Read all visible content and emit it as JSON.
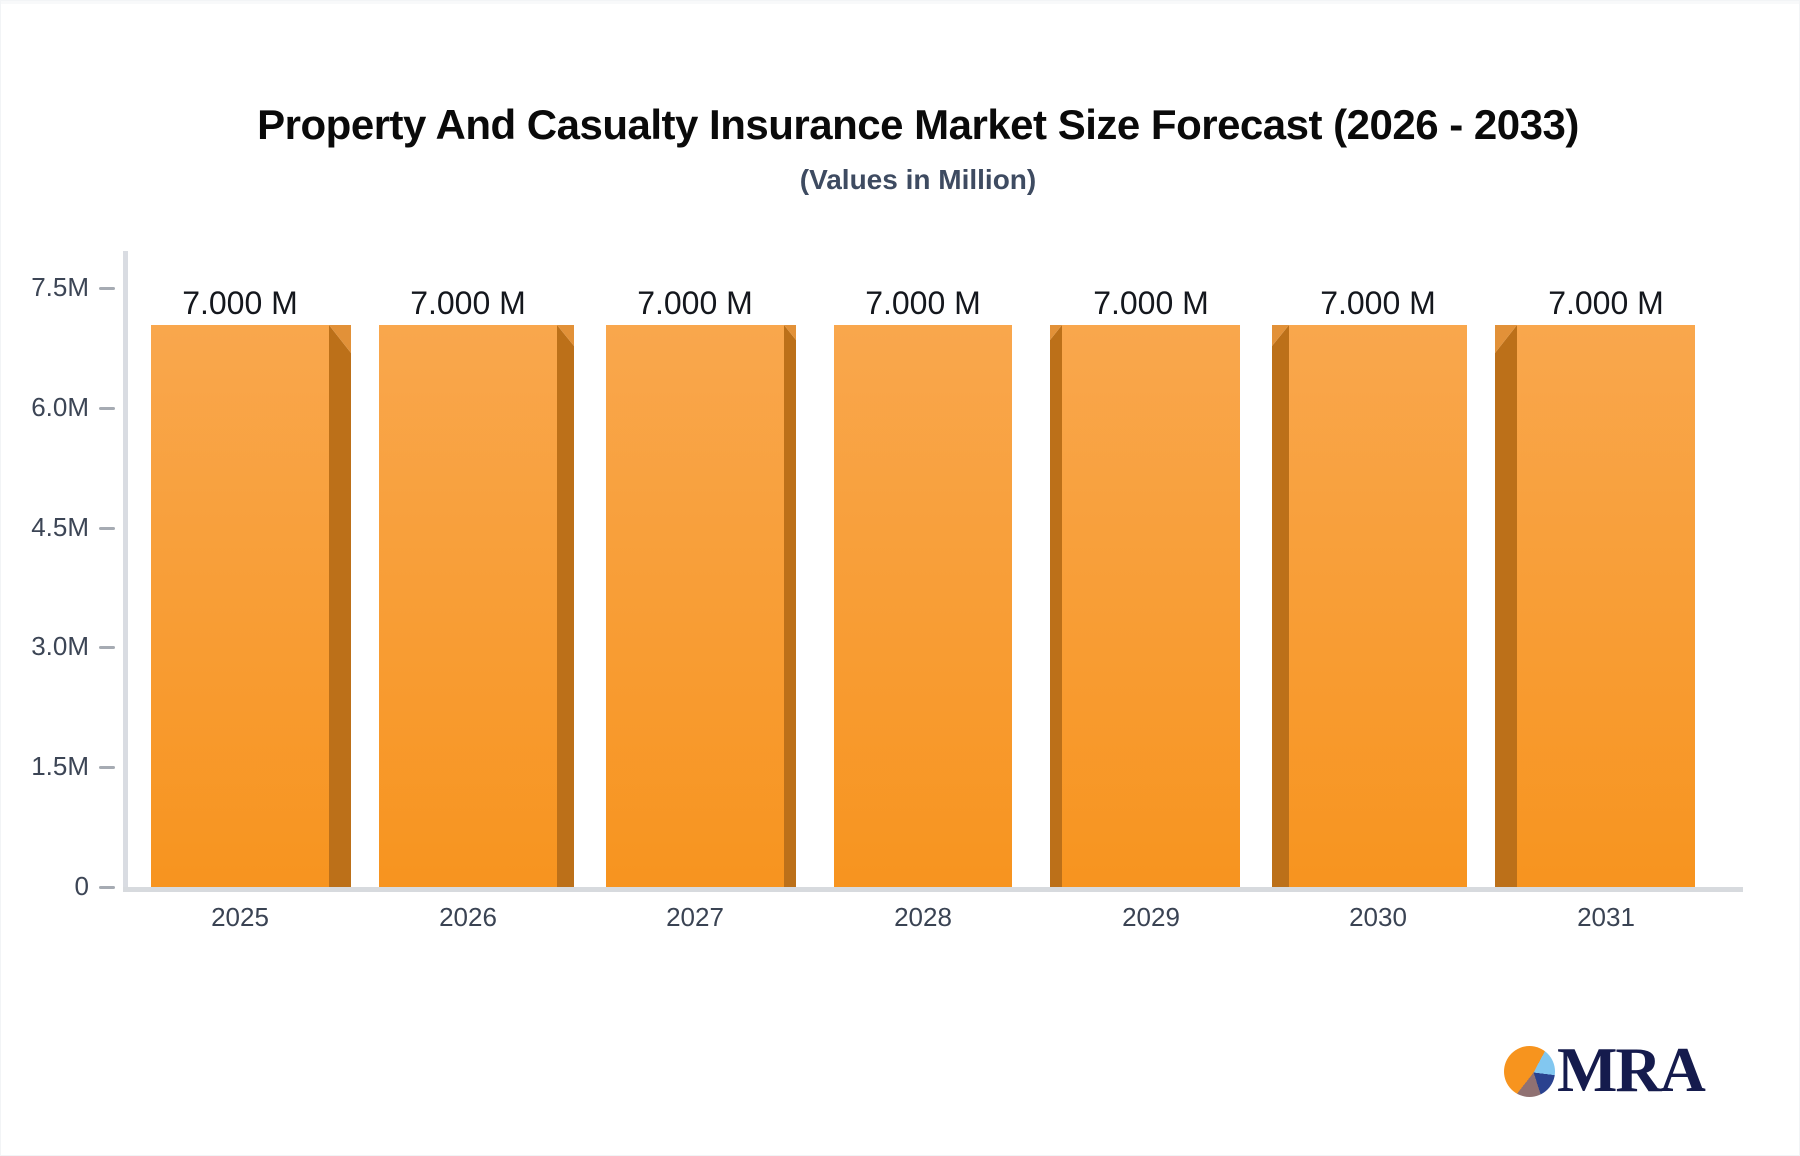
{
  "header": {
    "title": "Property And Casualty Insurance Market Size Forecast (2026 - 2033)",
    "subtitle": "(Values in Million)"
  },
  "chart_data": {
    "type": "bar",
    "title": "Property And Casualty Insurance Market Size Forecast (2026 - 2033)",
    "subtitle": "(Values in Million)",
    "unit": "Million",
    "categories": [
      "2025",
      "2026",
      "2027",
      "2028",
      "2029",
      "2030",
      "2031"
    ],
    "values": [
      7.0,
      7.0,
      7.0,
      7.0,
      7.0,
      7.0,
      7.0
    ],
    "value_labels": [
      "7.000 M",
      "7.000 M",
      "7.000 M",
      "7.000 M",
      "7.000 M",
      "7.000 M",
      "7.000 M"
    ],
    "xlabel": "",
    "ylabel": "",
    "ylim": [
      0,
      7.5
    ],
    "yticks": [
      {
        "label": "7.5M",
        "value": 7.5
      },
      {
        "label": "6.0M",
        "value": 6.0
      },
      {
        "label": "4.5M",
        "value": 4.5
      },
      {
        "label": "3.0M",
        "value": 3.0
      },
      {
        "label": "1.5M",
        "value": 1.5
      },
      {
        "label": "0",
        "value": 0
      }
    ],
    "grid": false,
    "legend": "none",
    "bar_style": {
      "face_top": "#F9A74D",
      "face_bottom": "#F7941F",
      "side": "#BC7019",
      "chamfer": "#E29138"
    },
    "axis_color": "#D9DCE2",
    "tick_color": "#A6ABB3"
  },
  "logo": {
    "text": "MRA",
    "text_color": "#151B4D",
    "pie_segments": [
      {
        "name": "orange",
        "color": "#F7941E"
      },
      {
        "name": "light-blue",
        "color": "#82C7F0"
      },
      {
        "name": "navy",
        "color": "#2A428F"
      },
      {
        "name": "mauve",
        "color": "#907172"
      }
    ]
  }
}
